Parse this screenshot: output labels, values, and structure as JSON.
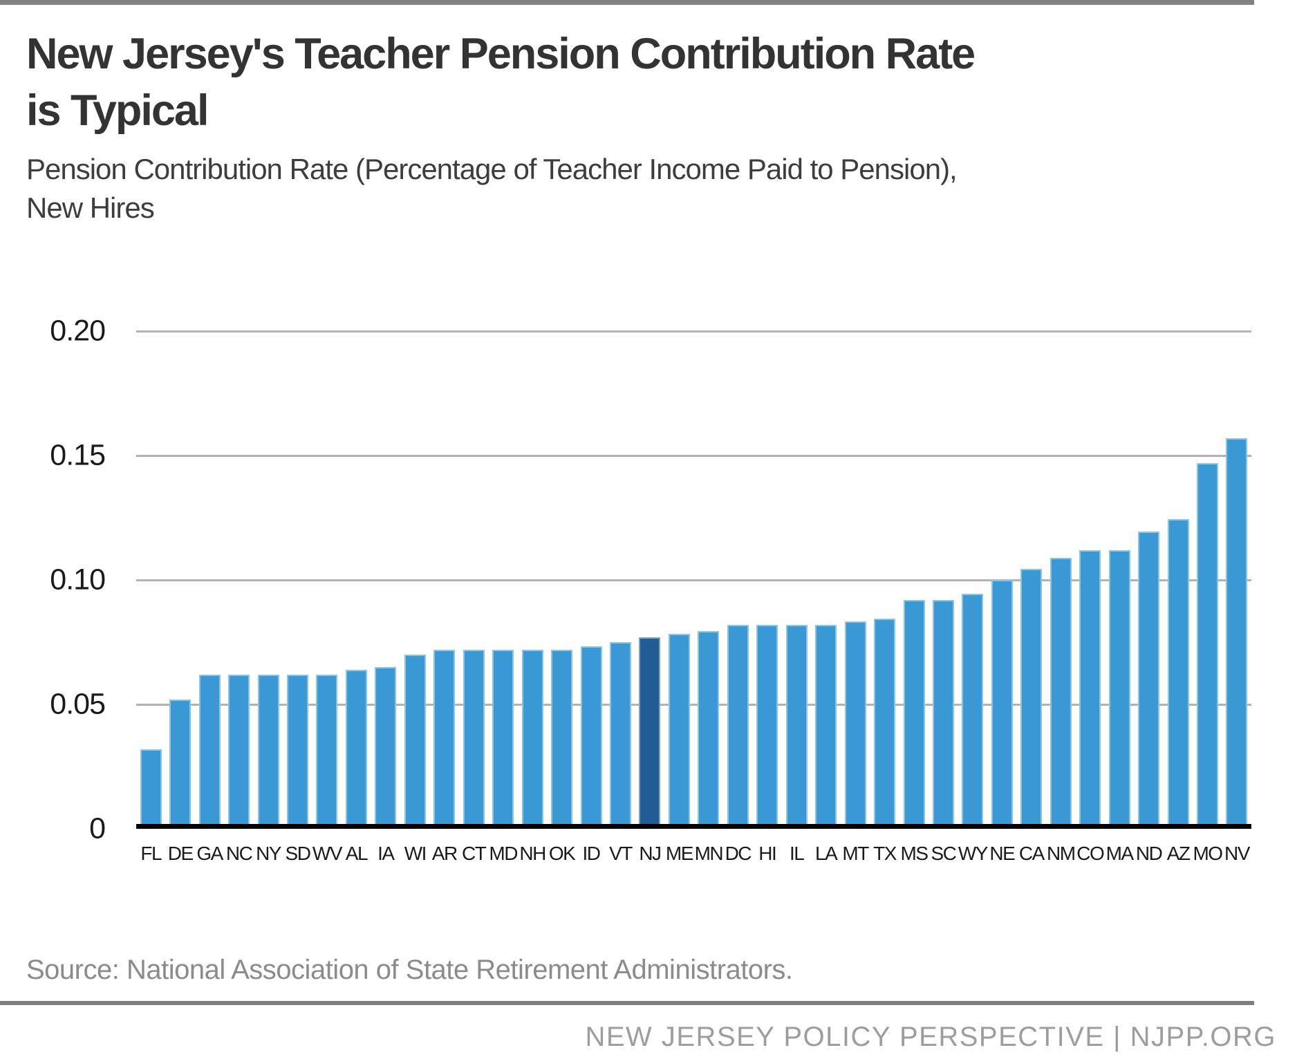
{
  "title_lines": [
    "New Jersey's Teacher Pension Contribution Rate",
    "is Typical"
  ],
  "subtitle_lines": [
    "Pension Contribution Rate (Percentage of Teacher Income Paid to Pension),",
    "New Hires"
  ],
  "source_text": "Source: National Association of State Retirement Administrators.",
  "footer_text": "NEW JERSEY POLICY PERSPECTIVE | NJPP.ORG",
  "colors": {
    "bar": "#3A99D4",
    "bar_highlight": "#215C95",
    "gridline": "#B2B2B5",
    "axis_line": "#000000",
    "title_text": "#333333",
    "subtitle_text": "#3D3D3D",
    "tick_text": "#1A1A1A",
    "source_text": "#8B8B8B",
    "footer_text": "#9D9D9D",
    "rule": "#828282"
  },
  "chart_data": {
    "type": "bar",
    "title": "New Jersey's Teacher Pension Contribution Rate is Typical",
    "subtitle": "Pension Contribution Rate (Percentage of Teacher Income Paid to Pension), New Hires",
    "categories": [
      "FL",
      "DE",
      "GA",
      "NC",
      "NY",
      "SD",
      "WV",
      "AL",
      "IA",
      "WI",
      "AR",
      "CT",
      "MD",
      "NH",
      "OK",
      "ID",
      "VT",
      "NJ",
      "ME",
      "MN",
      "DC",
      "HI",
      "IL",
      "LA",
      "MT",
      "TX",
      "MS",
      "SC",
      "WY",
      "NE",
      "CA",
      "NM",
      "CO",
      "MA",
      "ND",
      "AZ",
      "MO",
      "NV"
    ],
    "values": [
      0.03,
      0.05,
      0.06,
      0.06,
      0.06,
      0.06,
      0.06,
      0.062,
      0.063,
      0.068,
      0.07,
      0.07,
      0.07,
      0.07,
      0.07,
      0.0715,
      0.073,
      0.075,
      0.0765,
      0.0775,
      0.08,
      0.08,
      0.08,
      0.08,
      0.0815,
      0.0825,
      0.09,
      0.09,
      0.0925,
      0.098,
      0.1025,
      0.107,
      0.11,
      0.11,
      0.1175,
      0.1225,
      0.145,
      0.155
    ],
    "highlight_category": "NJ",
    "xlabel": "",
    "ylabel": "",
    "y_ticks": [
      0.2,
      0.15,
      0.1,
      0.05,
      0
    ],
    "y_tick_labels": [
      "0.20",
      "0.15",
      "0.10",
      "0.05",
      "0"
    ],
    "ylim": [
      0,
      0.2
    ],
    "grid": "horizontal",
    "legend": "none"
  }
}
